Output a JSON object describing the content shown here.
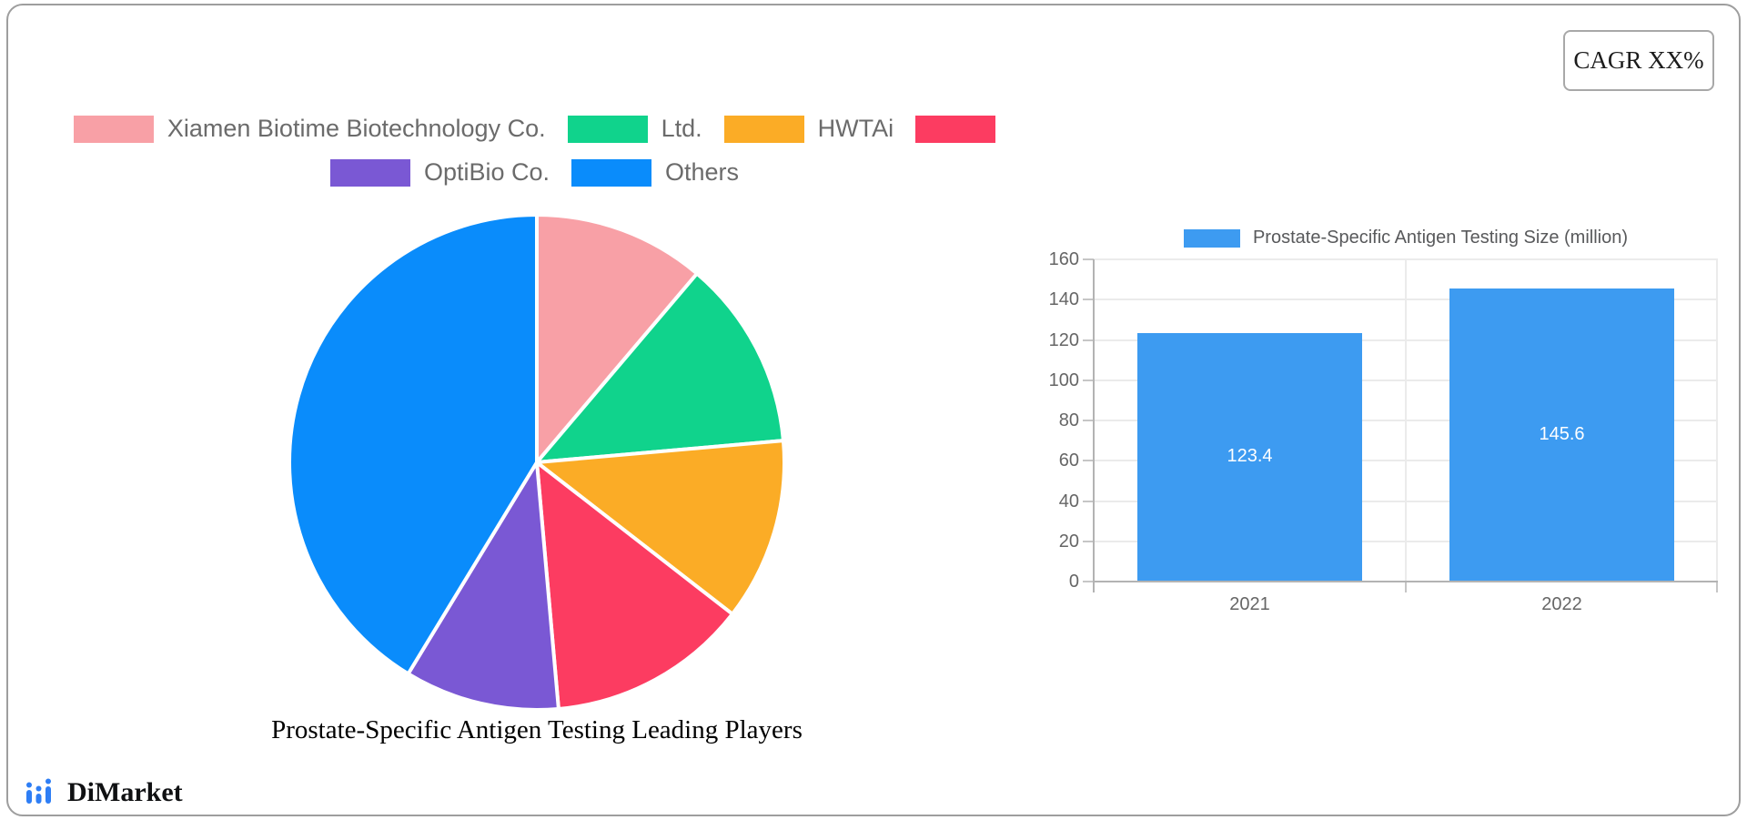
{
  "card": {
    "cagr_label": "CAGR XX%"
  },
  "branding": {
    "logo_text": "DiMarket",
    "logo_icon": "bar-chart-icon",
    "logo_color": "#2e7ef5"
  },
  "colors": {
    "pie_palette": [
      "#F8A0A6",
      "#10D38C",
      "#FBAC26",
      "#FC3C61",
      "#7A58D4",
      "#0A8CFB"
    ],
    "bar_fill": "#3D9BF1",
    "grid_line": "#EBEBEB",
    "axis_line": "#B3B3B3",
    "tick_line": "#C6C6C6",
    "legend_text": "#6b6b6b"
  },
  "chart_data": [
    {
      "type": "pie",
      "title": "Prostate-Specific Antigen Testing Leading Players",
      "labels": [
        "Xiamen Biotime Biotechnology Co.",
        "Ltd.",
        "HWTAi",
        "",
        "OptiBio Co.",
        "Others"
      ],
      "values_percent": [
        11.2,
        12.4,
        11.9,
        13.1,
        10.1,
        41.3
      ],
      "colors": [
        "#F8A0A6",
        "#10D38C",
        "#FBAC26",
        "#FC3C61",
        "#7A58D4",
        "#0A8CFB"
      ],
      "legend_rows": [
        [
          0,
          1,
          2,
          3
        ],
        [
          4,
          5
        ]
      ],
      "legend_position": "top",
      "start_angle_deg": 0,
      "clockwise": true,
      "slice_border_color": "#ffffff"
    },
    {
      "type": "bar",
      "legend": "Prostate-Specific Antigen Testing Size (million)",
      "categories": [
        "2021",
        "2022"
      ],
      "values": [
        123.4,
        145.6
      ],
      "value_labels": [
        "123.4",
        "145.6"
      ],
      "bar_color": "#3D9BF1",
      "ylim": [
        0,
        160
      ],
      "ytick_step": 20,
      "yticks": [
        0,
        20,
        40,
        60,
        80,
        100,
        120,
        140,
        160
      ],
      "grid": true,
      "legend_position": "top",
      "value_label_color": "#ffffff"
    }
  ]
}
